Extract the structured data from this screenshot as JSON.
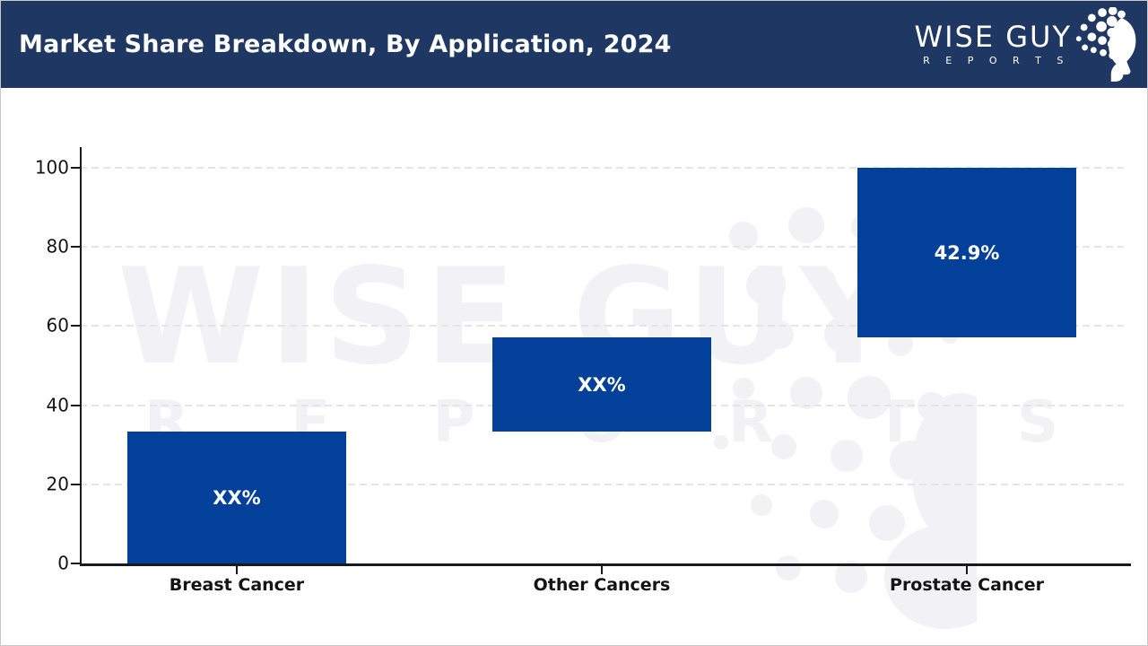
{
  "header": {
    "title": "Market Share Breakdown, By Application, 2024",
    "logo": {
      "line1": "WISE GUY",
      "line2": "R E P O R T S"
    }
  },
  "watermark": {
    "line1": "WISE GUY",
    "line2": "R E P O R T S"
  },
  "colors": {
    "header_bg": "#1f3763",
    "bar": "#03409a",
    "bar_label_text": "#ffffff",
    "axis": "#1a1a1a",
    "gridline": "#e5e5e7",
    "watermark": "#f2f2f4",
    "page_border": "#c9c9c9"
  },
  "chart_data": {
    "type": "bar",
    "subtype": "waterfall",
    "title": "Market Share Breakdown, By Application, 2024",
    "categories": [
      "Breast Cancer",
      "Other Cancers",
      "Prostate Cancer"
    ],
    "segments": [
      {
        "category": "Breast Cancer",
        "start": 0,
        "end": 33.3,
        "value": 33.3,
        "label": "XX%"
      },
      {
        "category": "Other Cancers",
        "start": 33.3,
        "end": 57.1,
        "value": 23.8,
        "label": "XX%"
      },
      {
        "category": "Prostate Cancer",
        "start": 57.1,
        "end": 100,
        "value": 42.9,
        "label": "42.9%"
      }
    ],
    "xlabel": "",
    "ylabel": "",
    "ylim": [
      0,
      100
    ],
    "yticks": [
      0,
      20,
      40,
      60,
      80,
      100
    ],
    "grid": "horizontal-dashed",
    "legend": "none",
    "bar_color": "#03409a"
  }
}
